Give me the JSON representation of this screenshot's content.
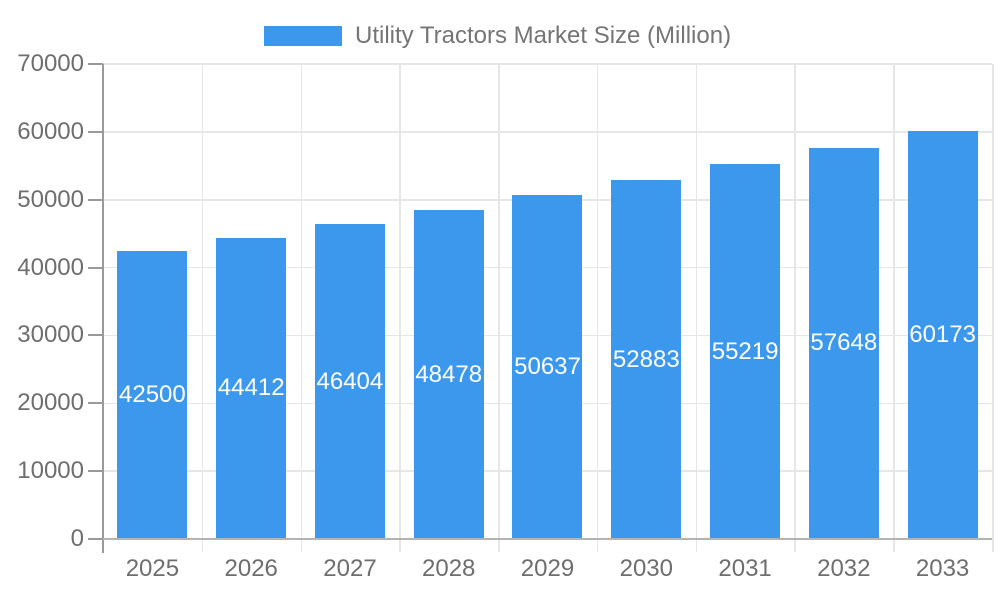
{
  "chart_data": {
    "type": "bar",
    "title": "Utility Tractors Market Size (Million)",
    "categories": [
      "2025",
      "2026",
      "2027",
      "2028",
      "2029",
      "2030",
      "2031",
      "2032",
      "2033"
    ],
    "values": [
      42500,
      44412,
      46404,
      48478,
      50637,
      52883,
      55219,
      57648,
      60173
    ],
    "xlabel": "",
    "ylabel": "",
    "ylim": [
      0,
      70000
    ],
    "yticks": [
      0,
      10000,
      20000,
      30000,
      40000,
      50000,
      60000,
      70000
    ],
    "legend_position": "top",
    "grid": true,
    "value_label_position": "inside-center",
    "colors": {
      "bar": "#3b98ec",
      "grid_line": "#e6e6e6",
      "axis_line": "#999999",
      "zero_line": "#b3b3b3",
      "tick_text": "#6e6e6e",
      "legend_text": "#757575",
      "value_label_text": "#ffffff",
      "background": "#ffffff"
    }
  }
}
